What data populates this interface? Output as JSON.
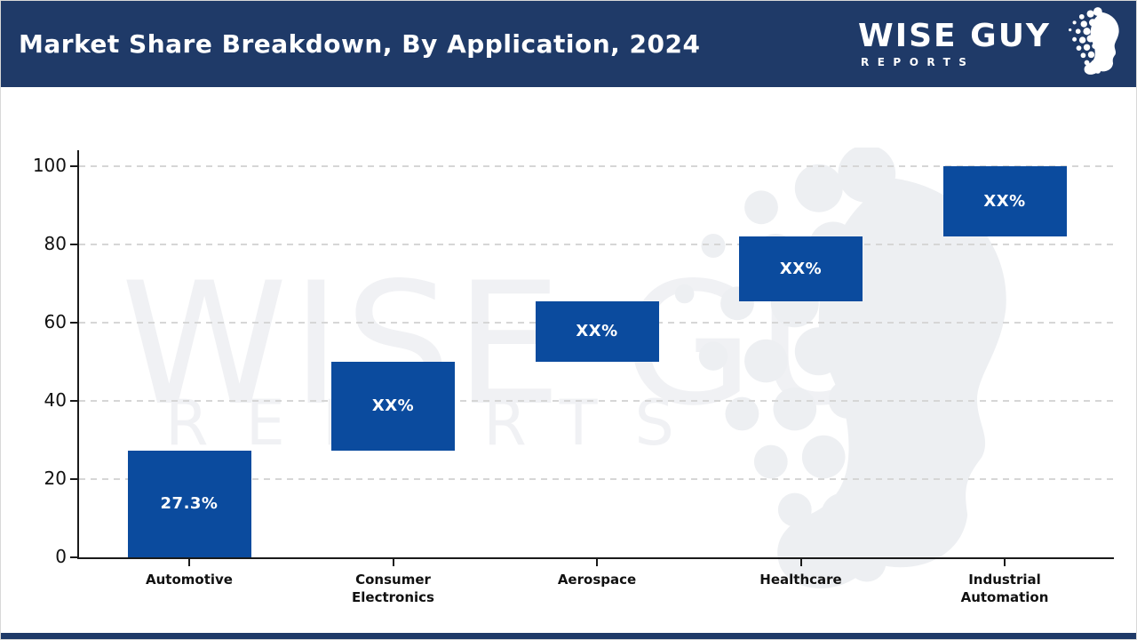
{
  "header": {
    "title": "Market Share Breakdown, By Application, 2024",
    "logo": {
      "line1": "WISE GUY",
      "line2": "REPORTS"
    }
  },
  "watermark": {
    "line1": "WISE GUY",
    "line2": "REPORTS"
  },
  "chart_data": {
    "type": "bar",
    "subtype": "waterfall-floating-bars",
    "title": "Market Share Breakdown, By Application, 2024",
    "xlabel": "",
    "ylabel": "",
    "categories": [
      "Automotive",
      "Consumer Electronics",
      "Aerospace",
      "Healthcare",
      "Industrial Automation"
    ],
    "series": [
      {
        "name": "Market share (%)",
        "segments": [
          {
            "category": "Automotive",
            "start": 0,
            "end": 27.3,
            "label": "27.3%"
          },
          {
            "category": "Consumer Electronics",
            "start": 27.3,
            "end": 50,
            "label": "XX%"
          },
          {
            "category": "Aerospace",
            "start": 50,
            "end": 65.5,
            "label": "XX%"
          },
          {
            "category": "Healthcare",
            "start": 65.5,
            "end": 82,
            "label": "XX%"
          },
          {
            "category": "Industrial Automation",
            "start": 82,
            "end": 100,
            "label": "XX%"
          }
        ]
      }
    ],
    "ylim": [
      0,
      104
    ],
    "yticks": [
      0,
      20,
      40,
      60,
      80,
      100
    ],
    "grid": "horizontal-dashed",
    "legend": "none"
  },
  "colors": {
    "header_bg": "#1f3a68",
    "footer_bg": "#1f3a68",
    "bar": "#0b4b9e",
    "bar_label": "#ffffff",
    "grid": "#d6d6d6",
    "axis": "#1a1a1a",
    "watermark": "#f0f1f4"
  }
}
